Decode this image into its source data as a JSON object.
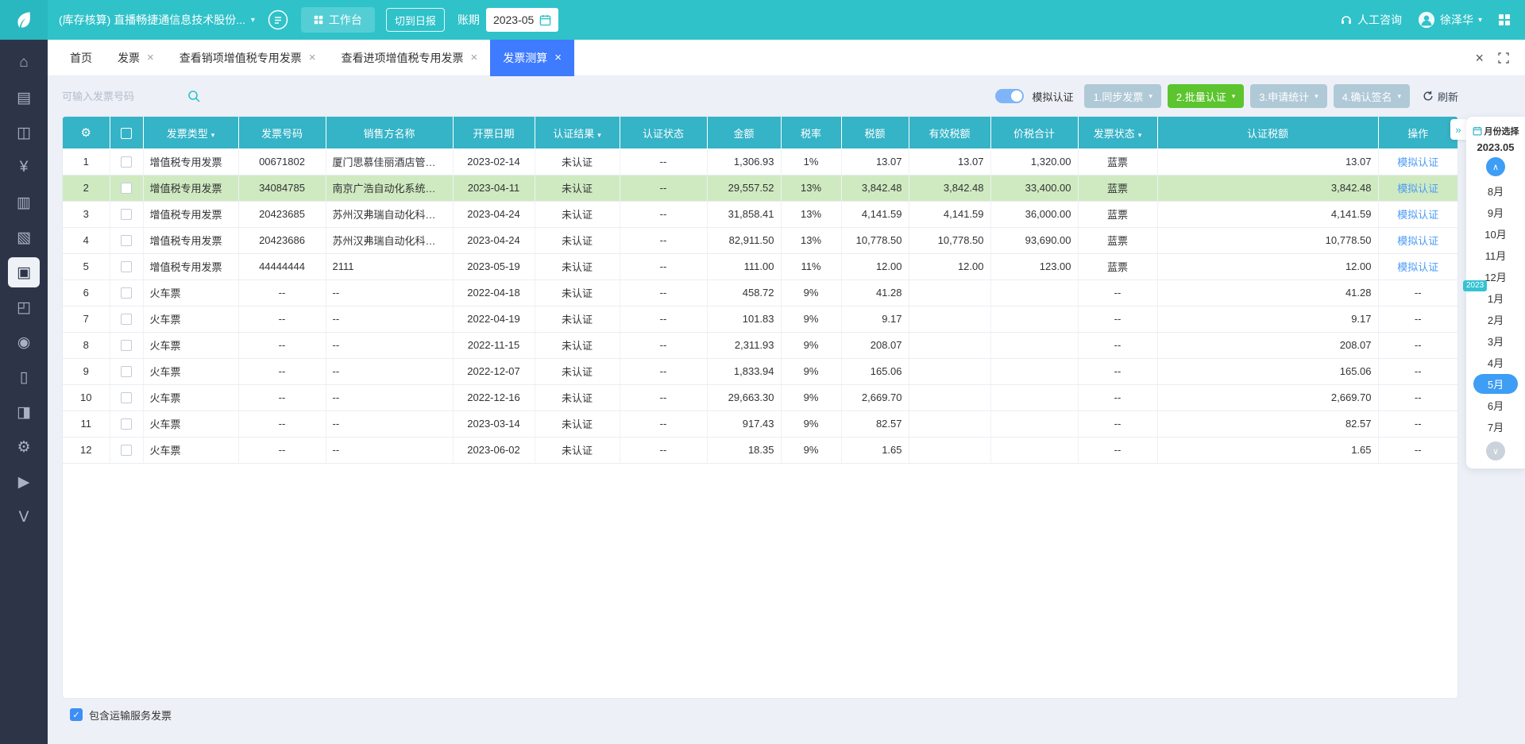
{
  "topbar": {
    "company": "(库存核算) 直播畅捷通信息技术股份...",
    "workbench": "工作台",
    "switch_daily": "切到日报",
    "period_label": "账期",
    "period_value": "2023-05",
    "support": "人工咨询",
    "user": "徐泽华"
  },
  "tabs": [
    {
      "name": "home",
      "label": "首页",
      "closable": false,
      "active": false
    },
    {
      "name": "invoice",
      "label": "发票",
      "closable": true,
      "active": false
    },
    {
      "name": "view-output-vat-invoice",
      "label": "查看销项增值税专用发票",
      "closable": true,
      "active": false
    },
    {
      "name": "view-input-vat-invoice",
      "label": "查看进项增值税专用发票",
      "closable": true,
      "active": false
    },
    {
      "name": "invoice-calculation",
      "label": "发票测算",
      "closable": true,
      "active": true
    }
  ],
  "sidebar": {
    "items": [
      {
        "name": "home",
        "glyph": "⌂",
        "active": false
      },
      {
        "name": "voucher",
        "glyph": "▤",
        "active": false
      },
      {
        "name": "reports",
        "glyph": "◫",
        "active": false
      },
      {
        "name": "funds",
        "glyph": "¥",
        "active": false
      },
      {
        "name": "invoice",
        "glyph": "▥",
        "active": false
      },
      {
        "name": "ledger",
        "glyph": "▧",
        "active": false
      },
      {
        "name": "inventory",
        "glyph": "▣",
        "active": true
      },
      {
        "name": "assets",
        "glyph": "◰",
        "active": false
      },
      {
        "name": "service",
        "glyph": "◉",
        "active": false
      },
      {
        "name": "checkout",
        "glyph": "▯",
        "active": false
      },
      {
        "name": "salary",
        "glyph": "◨",
        "active": false
      },
      {
        "name": "settings",
        "glyph": "⚙",
        "active": false
      },
      {
        "name": "training",
        "glyph": "▶",
        "active": false
      },
      {
        "name": "brand",
        "glyph": "Ⅴ",
        "active": false
      }
    ]
  },
  "toolbar": {
    "search_placeholder": "可输入发票号码",
    "toggle_label": "模拟认证",
    "toggle_on": true,
    "buttons": [
      {
        "name": "sync-invoices-button",
        "label": "1.同步发票",
        "style": "muted"
      },
      {
        "name": "batch-certify-button",
        "label": "2.批量认证",
        "style": "green"
      },
      {
        "name": "apply-statistics-button",
        "label": "3.申请统计",
        "style": "muted"
      },
      {
        "name": "confirm-sign-button",
        "label": "4.确认签名",
        "style": "muted"
      }
    ],
    "refresh_label": "刷新"
  },
  "table": {
    "columns": [
      {
        "key": "type",
        "name": "invoice-type",
        "label": "发票类型",
        "filter": true,
        "align": "left"
      },
      {
        "key": "number",
        "name": "invoice-number",
        "label": "发票号码"
      },
      {
        "key": "seller",
        "name": "seller-name",
        "label": "销售方名称",
        "align": "left"
      },
      {
        "key": "date",
        "name": "invoice-date",
        "label": "开票日期"
      },
      {
        "key": "result",
        "name": "certify-result",
        "label": "认证结果",
        "filter": true
      },
      {
        "key": "status",
        "name": "certify-status",
        "label": "认证状态"
      },
      {
        "key": "amount",
        "name": "amount",
        "label": "金额",
        "align": "right"
      },
      {
        "key": "rate",
        "name": "tax-rate",
        "label": "税率"
      },
      {
        "key": "tax",
        "name": "tax-amount",
        "label": "税额",
        "align": "right"
      },
      {
        "key": "valid_tax",
        "name": "valid-tax",
        "label": "有效税额",
        "align": "right"
      },
      {
        "key": "total",
        "name": "total-with-tax",
        "label": "价税合计",
        "align": "right"
      },
      {
        "key": "invoice_status",
        "name": "invoice-status",
        "label": "发票状态",
        "filter": true
      },
      {
        "key": "cert_tax",
        "name": "certified-tax",
        "label": "认证税额",
        "align": "right"
      },
      {
        "key": "operation",
        "name": "operation",
        "label": "操作"
      }
    ],
    "rows": [
      {
        "num": "1",
        "highlight": false,
        "type": "增值税专用发票",
        "number": "00671802",
        "seller": "厦门思慕佳丽酒店管理有限...",
        "date": "2023-02-14",
        "result": "未认证",
        "status": "--",
        "amount": "1,306.93",
        "rate": "1%",
        "tax": "13.07",
        "valid_tax": "13.07",
        "total": "1,320.00",
        "invoice_status": "蓝票",
        "cert_tax": "13.07",
        "operation": "模拟认证"
      },
      {
        "num": "2",
        "highlight": true,
        "type": "增值税专用发票",
        "number": "34084785",
        "seller": "南京广浩自动化系统有限责...",
        "date": "2023-04-11",
        "result": "未认证",
        "status": "--",
        "amount": "29,557.52",
        "rate": "13%",
        "tax": "3,842.48",
        "valid_tax": "3,842.48",
        "total": "33,400.00",
        "invoice_status": "蓝票",
        "cert_tax": "3,842.48",
        "operation": "模拟认证"
      },
      {
        "num": "3",
        "highlight": false,
        "type": "增值税专用发票",
        "number": "20423685",
        "seller": "苏州汉弗瑞自动化科技有限...",
        "date": "2023-04-24",
        "result": "未认证",
        "status": "--",
        "amount": "31,858.41",
        "rate": "13%",
        "tax": "4,141.59",
        "valid_tax": "4,141.59",
        "total": "36,000.00",
        "invoice_status": "蓝票",
        "cert_tax": "4,141.59",
        "operation": "模拟认证"
      },
      {
        "num": "4",
        "highlight": false,
        "type": "增值税专用发票",
        "number": "20423686",
        "seller": "苏州汉弗瑞自动化科技有限...",
        "date": "2023-04-24",
        "result": "未认证",
        "status": "--",
        "amount": "82,911.50",
        "rate": "13%",
        "tax": "10,778.50",
        "valid_tax": "10,778.50",
        "total": "93,690.00",
        "invoice_status": "蓝票",
        "cert_tax": "10,778.50",
        "operation": "模拟认证"
      },
      {
        "num": "5",
        "highlight": false,
        "type": "增值税专用发票",
        "number": "44444444",
        "seller": "2111",
        "date": "2023-05-19",
        "result": "未认证",
        "status": "--",
        "amount": "111.00",
        "rate": "11%",
        "tax": "12.00",
        "valid_tax": "12.00",
        "total": "123.00",
        "invoice_status": "蓝票",
        "cert_tax": "12.00",
        "operation": "模拟认证"
      },
      {
        "num": "6",
        "highlight": false,
        "type": "火车票",
        "number": "--",
        "seller": "--",
        "date": "2022-04-18",
        "result": "未认证",
        "status": "--",
        "amount": "458.72",
        "rate": "9%",
        "tax": "41.28",
        "valid_tax": "",
        "total": "",
        "invoice_status": "--",
        "cert_tax": "41.28",
        "operation": "--"
      },
      {
        "num": "7",
        "highlight": false,
        "type": "火车票",
        "number": "--",
        "seller": "--",
        "date": "2022-04-19",
        "result": "未认证",
        "status": "--",
        "amount": "101.83",
        "rate": "9%",
        "tax": "9.17",
        "valid_tax": "",
        "total": "",
        "invoice_status": "--",
        "cert_tax": "9.17",
        "operation": "--"
      },
      {
        "num": "8",
        "highlight": false,
        "type": "火车票",
        "number": "--",
        "seller": "--",
        "date": "2022-11-15",
        "result": "未认证",
        "status": "--",
        "amount": "2,311.93",
        "rate": "9%",
        "tax": "208.07",
        "valid_tax": "",
        "total": "",
        "invoice_status": "--",
        "cert_tax": "208.07",
        "operation": "--"
      },
      {
        "num": "9",
        "highlight": false,
        "type": "火车票",
        "number": "--",
        "seller": "--",
        "date": "2022-12-07",
        "result": "未认证",
        "status": "--",
        "amount": "1,833.94",
        "rate": "9%",
        "tax": "165.06",
        "valid_tax": "",
        "total": "",
        "invoice_status": "--",
        "cert_tax": "165.06",
        "operation": "--"
      },
      {
        "num": "10",
        "highlight": false,
        "type": "火车票",
        "number": "--",
        "seller": "--",
        "date": "2022-12-16",
        "result": "未认证",
        "status": "--",
        "amount": "29,663.30",
        "rate": "9%",
        "tax": "2,669.70",
        "valid_tax": "",
        "total": "",
        "invoice_status": "--",
        "cert_tax": "2,669.70",
        "operation": "--"
      },
      {
        "num": "11",
        "highlight": false,
        "type": "火车票",
        "number": "--",
        "seller": "--",
        "date": "2023-03-14",
        "result": "未认证",
        "status": "--",
        "amount": "917.43",
        "rate": "9%",
        "tax": "82.57",
        "valid_tax": "",
        "total": "",
        "invoice_status": "--",
        "cert_tax": "82.57",
        "operation": "--"
      },
      {
        "num": "12",
        "highlight": false,
        "type": "火车票",
        "number": "--",
        "seller": "--",
        "date": "2023-06-02",
        "result": "未认证",
        "status": "--",
        "amount": "18.35",
        "rate": "9%",
        "tax": "1.65",
        "valid_tax": "",
        "total": "",
        "invoice_status": "--",
        "cert_tax": "1.65",
        "operation": "--"
      }
    ]
  },
  "month_panel": {
    "title": "月份选择",
    "current": "2023.05",
    "year_badge": "2023",
    "year_badge_anchor": "1月",
    "months": [
      "8月",
      "9月",
      "10月",
      "11月",
      "12月",
      "1月",
      "2月",
      "3月",
      "4月",
      "5月",
      "6月",
      "7月"
    ],
    "selected": "5月"
  },
  "footer": {
    "transport_checkbox_label": "包含运输服务发票",
    "checked": true
  },
  "colors": {
    "topbar_teal": "#2fc2c9",
    "table_header_teal": "#35b3c7",
    "active_tab_blue": "#3e7bff",
    "selected_month_blue": "#3e9df5",
    "green_button": "#5cc42e",
    "highlight_row_green": "#cfeac1",
    "sidebar_dark": "#2e3448",
    "link_blue": "#4a9bf7"
  }
}
